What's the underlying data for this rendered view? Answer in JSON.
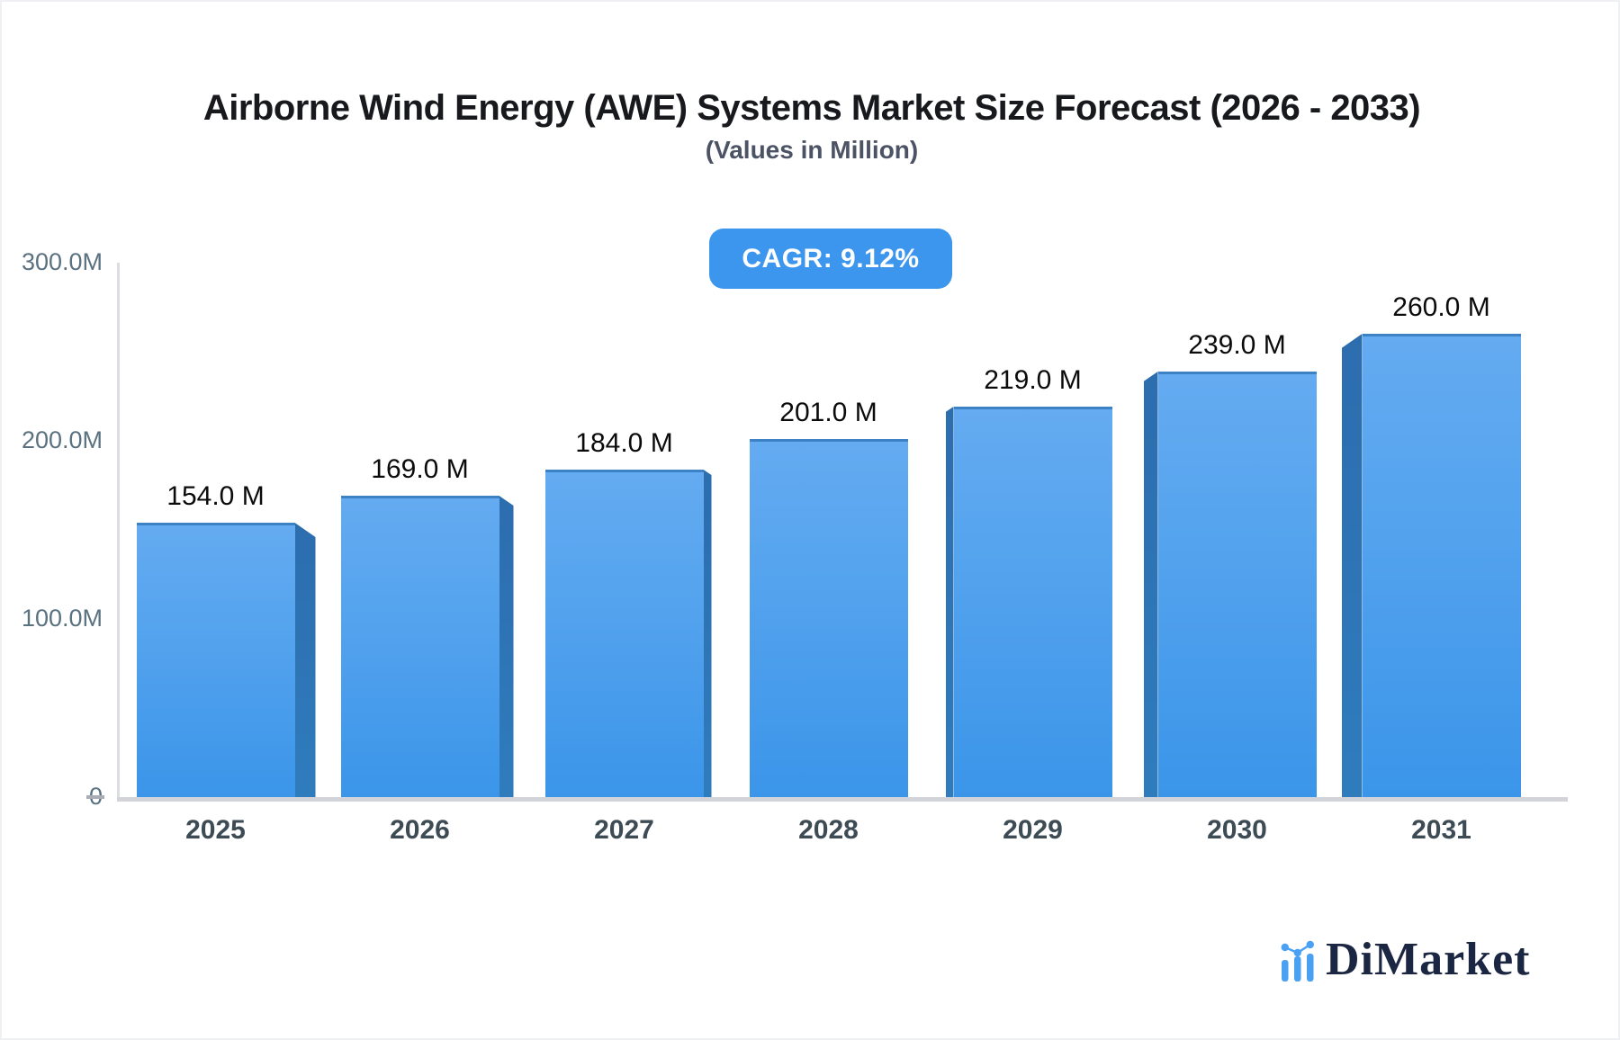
{
  "header": {
    "title": "Airborne Wind Energy (AWE) Systems Market Size Forecast (2026 - 2033)",
    "subtitle": "(Values in Million)"
  },
  "badge": {
    "label": "CAGR: 9.12%"
  },
  "logo": {
    "text": "DiMarket",
    "icon": "bar-chart-sparkline-icon"
  },
  "chart_data": {
    "type": "bar",
    "title": "Airborne Wind Energy (AWE) Systems Market Size Forecast (2026 - 2033)",
    "subtitle": "(Values in Million)",
    "cagr": "9.12%",
    "unit": "Million",
    "categories": [
      "2025",
      "2026",
      "2027",
      "2028",
      "2029",
      "2030",
      "2031"
    ],
    "values": [
      154,
      169,
      184,
      201,
      219,
      239,
      260
    ],
    "value_labels": [
      "154.0 M",
      "169.0 M",
      "184.0 M",
      "201.0 M",
      "219.0 M",
      "239.0 M",
      "260.0 M"
    ],
    "y_ticks": [
      {
        "label": "300.0M",
        "value": 300
      },
      {
        "label": "200.0M",
        "value": 200
      },
      {
        "label": "100.0M",
        "value": 100
      },
      {
        "label": "0",
        "value": 0
      }
    ],
    "ylim": [
      0,
      300
    ],
    "grid": "off",
    "legend": "none",
    "style": "pseudo-3d-perspective-bars",
    "colors": {
      "bar_front_top": "#64abf1",
      "bar_front_bottom": "#3b95e9",
      "bar_side": "#2e75b6",
      "bar_top_edge": "#3e82c6",
      "badge_bg": "#3c96ed",
      "badge_text": "#ffffff",
      "axis": "#d2d4d9",
      "y_label": "#5a7280",
      "x_label": "#3d4b55",
      "logo_blue": "#4aa0f2",
      "logo_navy": "#1b2742"
    }
  }
}
